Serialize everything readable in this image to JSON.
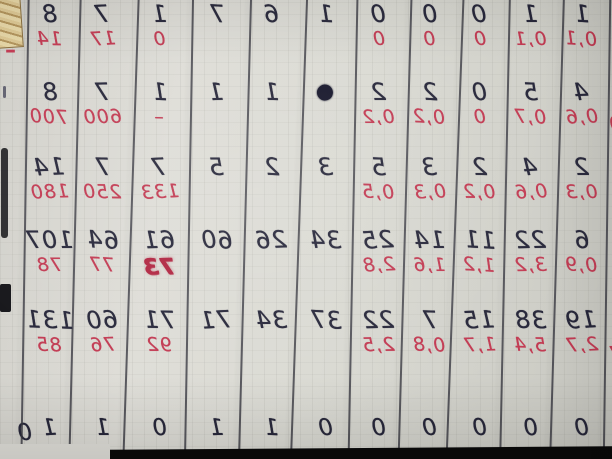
{
  "presentation": {
    "mirrored": true,
    "note": "Photograph of a handwritten squared-paper ledger table; the photo is horizontally mirrored, so handwriting appears reversed. Cell values below are listed in unmirrored (true) reading order, left to right; rendering flips them."
  },
  "colors": {
    "paper": "#dadad3",
    "column_line": "#3a3a42",
    "blue_ink": "#262639",
    "red_ink": "#c23a52",
    "photo_black_edge": "#0a0a0a",
    "table_edge_object": "#d9c48e"
  },
  "table": {
    "columns": 11,
    "rows": [
      {
        "cells": [
          {
            "blue": "1",
            "red": "0,1"
          },
          {
            "blue": "1",
            "red": "0,1"
          },
          {
            "blue": "0",
            "red": "0"
          },
          {
            "blue": "0",
            "red": "0"
          },
          {
            "blue": "0",
            "red": "0"
          },
          {
            "blue": "1"
          },
          {
            "blue": "6"
          },
          {
            "blue": "7"
          },
          {
            "blue": "1",
            "red": "0"
          },
          {
            "blue": "7",
            "red": "17"
          },
          {
            "blue": "8",
            "red": "14"
          }
        ]
      },
      {
        "cells": [
          {
            "blue": "4",
            "red": "0,6"
          },
          {
            "blue": "5",
            "red": "0,7"
          },
          {
            "blue": "0",
            "red": "0"
          },
          {
            "blue": "2",
            "red": "0,2"
          },
          {
            "blue": "2",
            "red": "0,2"
          },
          {
            "blue": "●",
            "blot": true
          },
          {
            "blue": "1"
          },
          {
            "blue": "1"
          },
          {
            "blue": "1",
            "red": "–"
          },
          {
            "blue": "7",
            "red": "600"
          },
          {
            "blue": "8",
            "red": "700"
          }
        ]
      },
      {
        "cells": [
          {
            "blue": "2",
            "red": "0,3"
          },
          {
            "blue": "4",
            "red": "0,6"
          },
          {
            "blue": "2",
            "red": "0,2"
          },
          {
            "blue": "3",
            "red": "0,3"
          },
          {
            "blue": "5",
            "red": "0,5"
          },
          {
            "blue": "3"
          },
          {
            "blue": "2"
          },
          {
            "blue": "5"
          },
          {
            "blue": "7",
            "red": "133"
          },
          {
            "blue": "7",
            "red": "250"
          },
          {
            "blue": "14",
            "red": "180"
          }
        ]
      },
      {
        "cells": [
          {
            "blue": "6",
            "red": "0,9"
          },
          {
            "blue": "22",
            "red": "3,2"
          },
          {
            "blue": "11",
            "red": "1,2"
          },
          {
            "blue": "14",
            "red": "1,6"
          },
          {
            "blue": "25",
            "red": "2,8"
          },
          {
            "blue": "34"
          },
          {
            "blue": "26"
          },
          {
            "blue": "60"
          },
          {
            "blue": "61",
            "red": "73",
            "red_overwritten": true
          },
          {
            "blue": "64",
            "red": "77"
          },
          {
            "blue": "107",
            "red": "78"
          }
        ]
      },
      {
        "cells": [
          {
            "blue": "19",
            "red": "2,7"
          },
          {
            "blue": "38",
            "red": "5,4"
          },
          {
            "blue": "15",
            "red": "1,7"
          },
          {
            "blue": "7",
            "red": "0,8"
          },
          {
            "blue": "22",
            "red": "2,5"
          },
          {
            "blue": "37"
          },
          {
            "blue": "34"
          },
          {
            "blue": "71"
          },
          {
            "blue": "71",
            "red": "92"
          },
          {
            "blue": "60",
            "red": "76"
          },
          {
            "blue": "131",
            "red": "85"
          }
        ]
      },
      {
        "cells": [
          {
            "blue": "0"
          },
          {
            "blue": "0"
          },
          {
            "blue": "0"
          },
          {
            "blue": "0"
          },
          {
            "blue": "0"
          },
          {
            "blue": "0"
          },
          {
            "blue": "1"
          },
          {
            "blue": "1"
          },
          {
            "blue": "0"
          },
          {
            "blue": "1"
          },
          {
            "blue": "1"
          }
        ]
      }
    ],
    "margin": {
      "row6_value": "0",
      "red_dash": "–"
    },
    "edge_fragments": [
      {
        "row": 2,
        "red": "0"
      },
      {
        "row": 4,
        "red": "3"
      },
      {
        "row": 5,
        "red": "7"
      }
    ]
  }
}
